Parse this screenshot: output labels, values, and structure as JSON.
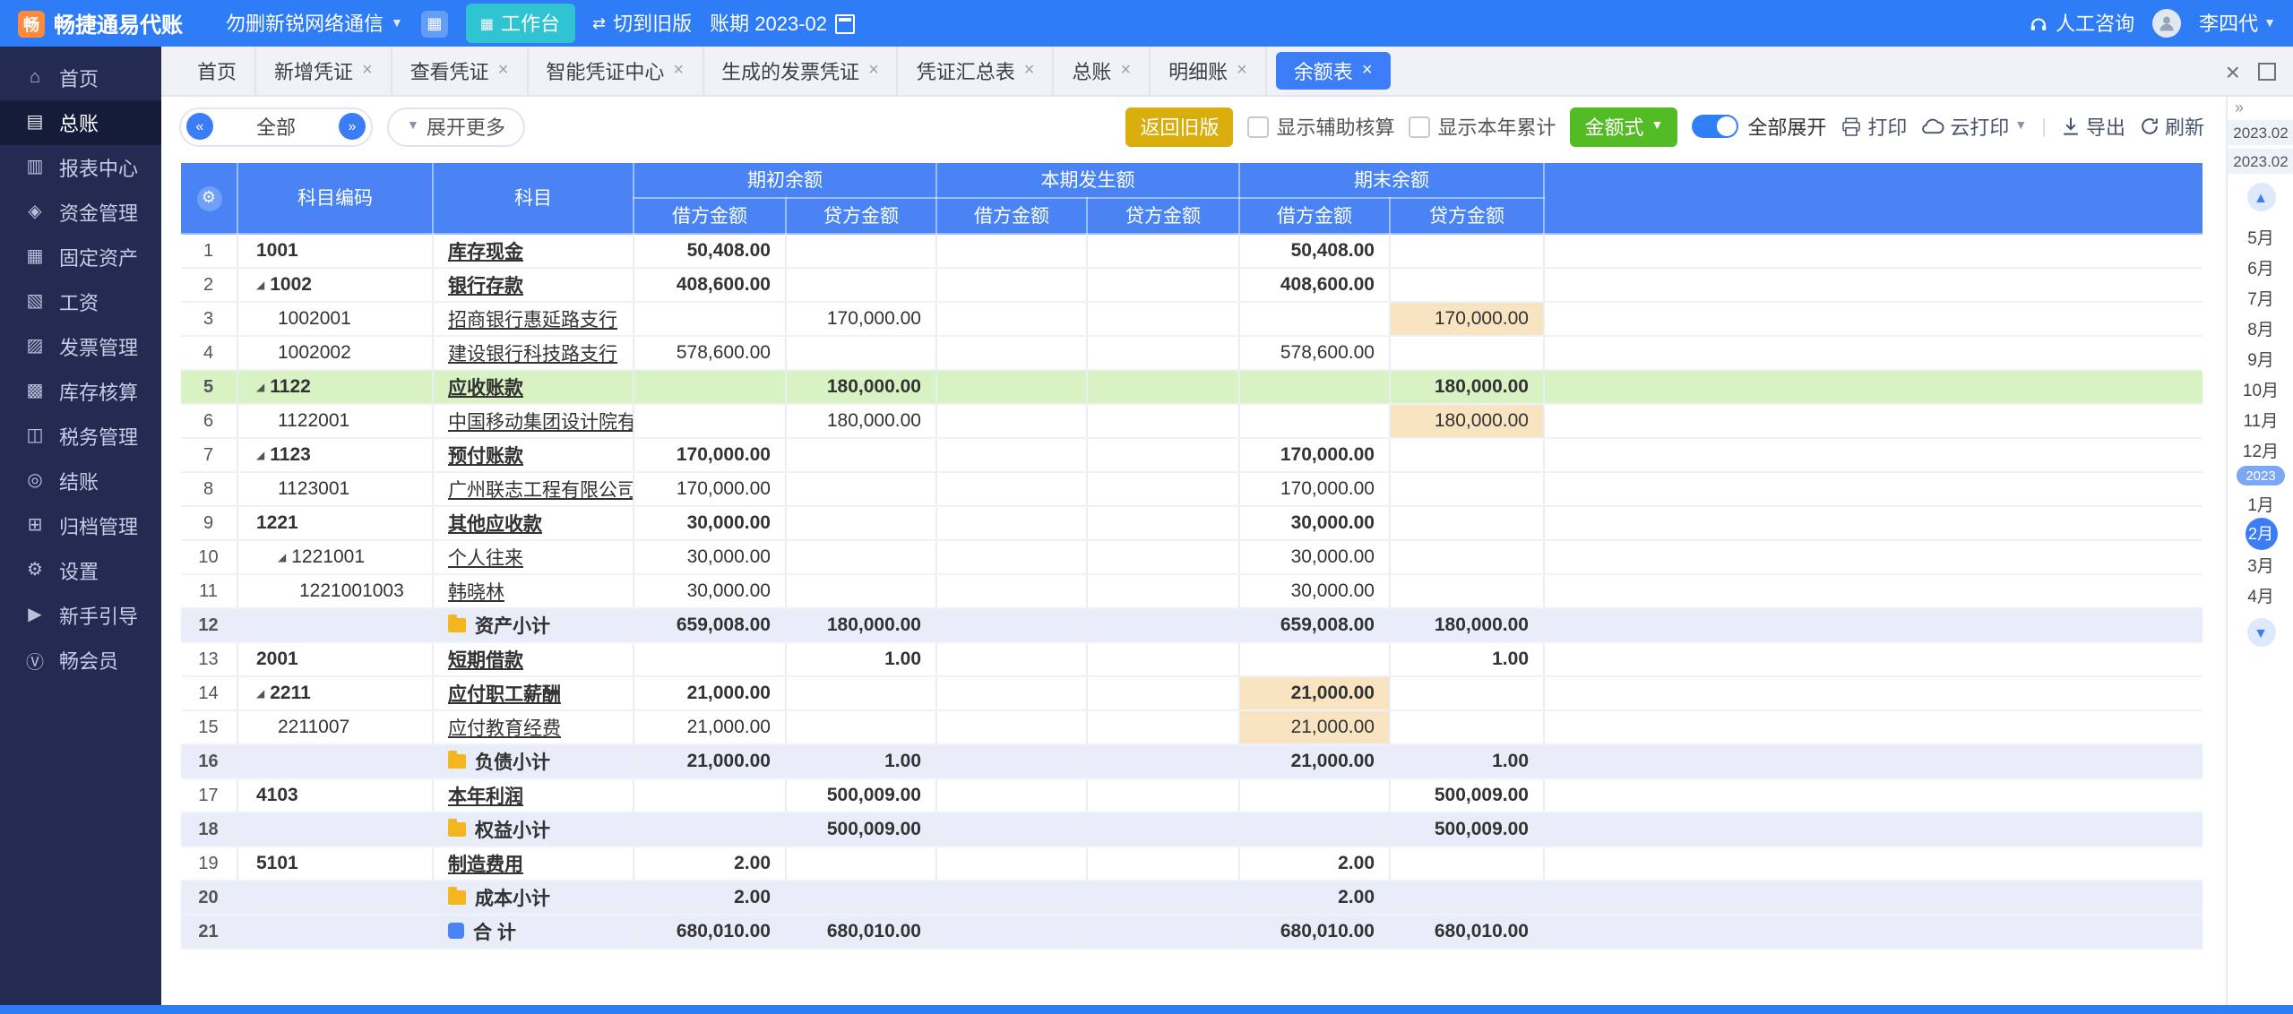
{
  "topbar": {
    "logo_text": "畅捷通易代账",
    "logo_glyph": "畅",
    "company": "勿删新锐网络通信",
    "workbench": "工作台",
    "switch_old": "切到旧版",
    "period": "账期 2023-02",
    "support": "人工咨询",
    "user": "李四代"
  },
  "tabs": {
    "items": [
      {
        "label": "首页",
        "closable": false,
        "active": false
      },
      {
        "label": "新增凭证",
        "closable": true,
        "active": false
      },
      {
        "label": "查看凭证",
        "closable": true,
        "active": false
      },
      {
        "label": "智能凭证中心",
        "closable": true,
        "active": false
      },
      {
        "label": "生成的发票凭证",
        "closable": true,
        "active": false
      },
      {
        "label": "凭证汇总表",
        "closable": true,
        "active": false
      },
      {
        "label": "总账",
        "closable": true,
        "active": false
      },
      {
        "label": "明细账",
        "closable": true,
        "active": false
      },
      {
        "label": "余额表",
        "closable": true,
        "active": true
      }
    ]
  },
  "sidebar": {
    "items": [
      {
        "label": "首页",
        "icon": "home-icon",
        "glyph": "⌂",
        "active": false
      },
      {
        "label": "总账",
        "icon": "ledger-icon",
        "glyph": "▤",
        "active": true
      },
      {
        "label": "报表中心",
        "icon": "reports-icon",
        "glyph": "▥",
        "active": false
      },
      {
        "label": "资金管理",
        "icon": "funds-icon",
        "glyph": "◈",
        "active": false
      },
      {
        "label": "固定资产",
        "icon": "fixed-assets-icon",
        "glyph": "▦",
        "active": false
      },
      {
        "label": "工资",
        "icon": "payroll-icon",
        "glyph": "▧",
        "active": false
      },
      {
        "label": "发票管理",
        "icon": "invoice-icon",
        "glyph": "▨",
        "active": false
      },
      {
        "label": "库存核算",
        "icon": "inventory-icon",
        "glyph": "▩",
        "active": false
      },
      {
        "label": "税务管理",
        "icon": "tax-icon",
        "glyph": "◫",
        "active": false
      },
      {
        "label": "结账",
        "icon": "closing-icon",
        "glyph": "◎",
        "active": false
      },
      {
        "label": "归档管理",
        "icon": "archive-icon",
        "glyph": "⊞",
        "active": false
      },
      {
        "label": "设置",
        "icon": "settings-icon",
        "glyph": "⚙",
        "active": false
      },
      {
        "label": "新手引导",
        "icon": "guide-icon",
        "glyph": "▶",
        "active": false
      },
      {
        "label": "畅会员",
        "icon": "member-icon",
        "glyph": "Ⓥ",
        "active": false
      }
    ]
  },
  "toolbar": {
    "filter_label": "全部",
    "expand_more": "展开更多",
    "back_old": "返回旧版",
    "show_auxiliary": "显示辅助核算",
    "show_ytd": "显示本年累计",
    "amount_style": "金额式",
    "expand_all": "全部展开",
    "print": "打印",
    "cloud_print": "云打印",
    "export": "导出",
    "refresh": "刷新"
  },
  "table": {
    "headers": {
      "code": "科目编码",
      "subject": "科目",
      "opening": "期初余额",
      "current": "本期发生额",
      "closing": "期末余额",
      "debit": "借方金额",
      "credit": "贷方金额"
    },
    "rows": [
      {
        "n": 1,
        "code": "1001",
        "name": "库存现金",
        "lvl": 0,
        "exp": false,
        "bold": true,
        "link": true,
        "c": [
          "50,408.00",
          "",
          "",
          "",
          "50,408.00",
          ""
        ],
        "hl": []
      },
      {
        "n": 2,
        "code": "1002",
        "name": "银行存款",
        "lvl": 0,
        "exp": true,
        "bold": true,
        "link": true,
        "c": [
          "408,600.00",
          "",
          "",
          "",
          "408,600.00",
          ""
        ],
        "hl": []
      },
      {
        "n": 3,
        "code": "1002001",
        "name": "招商银行惠延路支行",
        "lvl": 1,
        "exp": false,
        "bold": false,
        "link": true,
        "c": [
          "",
          "170,000.00",
          "",
          "",
          "",
          "170,000.00"
        ],
        "hl": [
          5
        ]
      },
      {
        "n": 4,
        "code": "1002002",
        "name": "建设银行科技路支行",
        "lvl": 1,
        "exp": false,
        "bold": false,
        "link": true,
        "c": [
          "578,600.00",
          "",
          "",
          "",
          "578,600.00",
          ""
        ],
        "hl": []
      },
      {
        "n": 5,
        "code": "1122",
        "name": "应收账款",
        "lvl": 0,
        "exp": true,
        "bold": true,
        "link": true,
        "c": [
          "",
          "180,000.00",
          "",
          "",
          "",
          "180,000.00"
        ],
        "hl": [
          5
        ],
        "cls": "selected"
      },
      {
        "n": 6,
        "code": "1122001",
        "name": "中国移动集团设计院有限公司划",
        "lvl": 1,
        "exp": false,
        "bold": false,
        "link": true,
        "c": [
          "",
          "180,000.00",
          "",
          "",
          "",
          "180,000.00"
        ],
        "hl": [
          5
        ]
      },
      {
        "n": 7,
        "code": "1123",
        "name": "预付账款",
        "lvl": 0,
        "exp": true,
        "bold": true,
        "link": true,
        "c": [
          "170,000.00",
          "",
          "",
          "",
          "170,000.00",
          ""
        ],
        "hl": []
      },
      {
        "n": 8,
        "code": "1123001",
        "name": "广州联志工程有限公司",
        "lvl": 1,
        "exp": false,
        "bold": false,
        "link": true,
        "c": [
          "170,000.00",
          "",
          "",
          "",
          "170,000.00",
          ""
        ],
        "hl": []
      },
      {
        "n": 9,
        "code": "1221",
        "name": "其他应收款",
        "lvl": 0,
        "exp": false,
        "bold": true,
        "link": true,
        "c": [
          "30,000.00",
          "",
          "",
          "",
          "30,000.00",
          ""
        ],
        "hl": []
      },
      {
        "n": 10,
        "code": "1221001",
        "name": "个人往来",
        "lvl": 1,
        "exp": true,
        "bold": false,
        "link": true,
        "c": [
          "30,000.00",
          "",
          "",
          "",
          "30,000.00",
          ""
        ],
        "hl": []
      },
      {
        "n": 11,
        "code": "1221001003",
        "name": "韩晓林",
        "lvl": 2,
        "exp": false,
        "bold": false,
        "link": true,
        "c": [
          "30,000.00",
          "",
          "",
          "",
          "30,000.00",
          ""
        ],
        "hl": []
      },
      {
        "n": 12,
        "code": "",
        "name": "资产小计",
        "lvl": 0,
        "exp": false,
        "bold": true,
        "link": false,
        "icon": "folder",
        "cls": "subtotal",
        "c": [
          "659,008.00",
          "180,000.00",
          "",
          "",
          "659,008.00",
          "180,000.00"
        ],
        "hl": []
      },
      {
        "n": 13,
        "code": "2001",
        "name": "短期借款",
        "lvl": 0,
        "exp": false,
        "bold": true,
        "link": true,
        "c": [
          "",
          "1.00",
          "",
          "",
          "",
          "1.00"
        ],
        "hl": []
      },
      {
        "n": 14,
        "code": "2211",
        "name": "应付职工薪酬",
        "lvl": 0,
        "exp": true,
        "bold": true,
        "link": true,
        "c": [
          "21,000.00",
          "",
          "",
          "",
          "21,000.00",
          ""
        ],
        "hl": [
          4
        ]
      },
      {
        "n": 15,
        "code": "2211007",
        "name": "应付教育经费",
        "lvl": 1,
        "exp": false,
        "bold": false,
        "link": true,
        "c": [
          "21,000.00",
          "",
          "",
          "",
          "21,000.00",
          ""
        ],
        "hl": [
          4
        ]
      },
      {
        "n": 16,
        "code": "",
        "name": "负债小计",
        "lvl": 0,
        "exp": false,
        "bold": true,
        "link": false,
        "icon": "folder",
        "cls": "subtotal",
        "c": [
          "21,000.00",
          "1.00",
          "",
          "",
          "21,000.00",
          "1.00"
        ],
        "hl": []
      },
      {
        "n": 17,
        "code": "4103",
        "name": "本年利润",
        "lvl": 0,
        "exp": false,
        "bold": true,
        "link": true,
        "c": [
          "",
          "500,009.00",
          "",
          "",
          "",
          "500,009.00"
        ],
        "hl": []
      },
      {
        "n": 18,
        "code": "",
        "name": "权益小计",
        "lvl": 0,
        "exp": false,
        "bold": true,
        "link": false,
        "icon": "folder",
        "cls": "subtotal",
        "c": [
          "",
          "500,009.00",
          "",
          "",
          "",
          "500,009.00"
        ],
        "hl": []
      },
      {
        "n": 19,
        "code": "5101",
        "name": "制造费用",
        "lvl": 0,
        "exp": false,
        "bold": true,
        "link": true,
        "c": [
          "2.00",
          "",
          "",
          "",
          "2.00",
          ""
        ],
        "hl": []
      },
      {
        "n": 20,
        "code": "",
        "name": "成本小计",
        "lvl": 0,
        "exp": false,
        "bold": true,
        "link": false,
        "icon": "folder",
        "cls": "subtotal",
        "c": [
          "2.00",
          "",
          "",
          "",
          "2.00",
          ""
        ],
        "hl": []
      },
      {
        "n": 21,
        "code": "",
        "name": "合  计",
        "lvl": 0,
        "exp": false,
        "bold": true,
        "link": false,
        "icon": "total",
        "cls": "total",
        "c": [
          "680,010.00",
          "680,010.00",
          "",
          "",
          "680,010.00",
          "680,010.00"
        ],
        "hl": []
      }
    ]
  },
  "months": {
    "range_start": "2023.02",
    "range_end": "2023.02",
    "items": [
      {
        "label": "5月"
      },
      {
        "label": "6月"
      },
      {
        "label": "7月"
      },
      {
        "label": "8月"
      },
      {
        "label": "9月"
      },
      {
        "label": "10月"
      },
      {
        "label": "11月"
      },
      {
        "label": "12月"
      },
      {
        "label": "2023",
        "badge": true
      },
      {
        "label": "1月"
      },
      {
        "label": "2月",
        "selected": true
      },
      {
        "label": "3月"
      },
      {
        "label": "4月"
      }
    ]
  },
  "colors": {
    "accent_blue": "#2e7cf6",
    "table_header_blue": "#4a84f4",
    "selected_row_green": "#d9f2c3",
    "abnormal_cell_orange": "#f9e4c2",
    "subtotal_row_lavender": "#e9edfa",
    "sidebar_navy": "#222c52",
    "workbench_teal": "#30c3d2",
    "back_old_gold": "#d9ad0c",
    "amount_style_green": "#53bb24"
  }
}
